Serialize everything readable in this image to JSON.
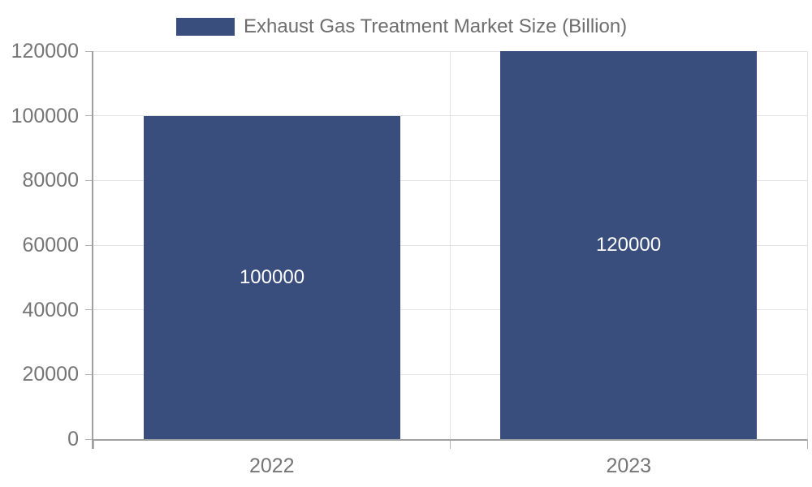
{
  "legend": {
    "position": "top-center",
    "items": [
      {
        "label": "Exhaust Gas Treatment Market Size (Billion)",
        "swatch_color": "#394E7D"
      }
    ]
  },
  "chart_data": {
    "type": "bar",
    "title": "",
    "xlabel": "",
    "ylabel": "",
    "categories": [
      "2022",
      "2023"
    ],
    "series": [
      {
        "name": "Exhaust Gas Treatment Market Size (Billion)",
        "values": [
          100000,
          120000
        ],
        "color": "#394E7D"
      }
    ],
    "bar_labels": [
      "100000",
      "120000"
    ],
    "bar_label_color": "#FFFFFF",
    "ylim": [
      0,
      120000
    ],
    "yticks": [
      0,
      20000,
      40000,
      60000,
      80000,
      100000,
      120000
    ],
    "grid": true,
    "legend_position": "top"
  },
  "colors": {
    "bar": "#394E7D",
    "grid_line": "#E3E3E3",
    "axis_line": "#A0A0A0",
    "tick_mark": "#B3B3B3",
    "tick_label": "#757575",
    "legend_text": "#6E6E6E",
    "background": "#FFFFFF"
  }
}
